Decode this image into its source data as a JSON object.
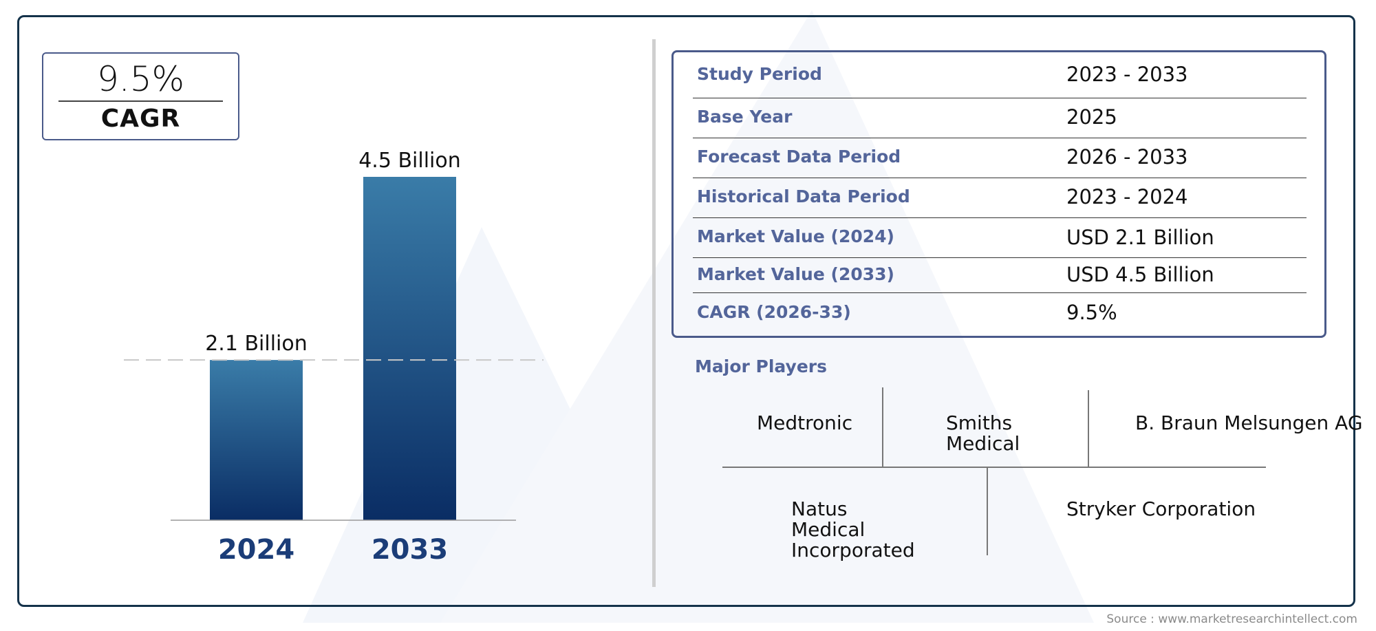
{
  "cagr": {
    "value": "9.5%",
    "label": "CAGR"
  },
  "chart_data": {
    "type": "bar",
    "categories": [
      "2024",
      "2033"
    ],
    "values": [
      2.1,
      4.5
    ],
    "data_labels": [
      "2.1 Billion",
      "4.5 Billion"
    ],
    "value_unit": "Billion",
    "reference_line": 2.1,
    "ylim": [
      0,
      4.5
    ],
    "grid": false,
    "colors": {
      "bar_top": "#3a7ca8",
      "bar_bottom": "#0a2d64",
      "tick_label": "#1b3d78",
      "ref_line": "#c8c8c8",
      "baseline": "#999999"
    }
  },
  "info_table": {
    "rows": [
      {
        "label": "Study Period",
        "value": "2023 - 2033"
      },
      {
        "label": "Base Year",
        "value": "2025"
      },
      {
        "label": "Forecast Data Period",
        "value": "2026 - 2033"
      },
      {
        "label": "Historical Data Period",
        "value": "2023 - 2024"
      },
      {
        "label": "Market Value (2024)",
        "value": "USD 2.1 Billion"
      },
      {
        "label": "Market Value (2033)",
        "value": "USD 4.5 Billion"
      },
      {
        "label": "CAGR (2026-33)",
        "value": "9.5%"
      }
    ]
  },
  "major_players": {
    "title": "Major Players",
    "players": [
      {
        "name": "Medtronic"
      },
      {
        "name": "Smiths Medical"
      },
      {
        "name": "B. Braun Melsungen AG"
      },
      {
        "name": "Natus Medical Incorporated"
      },
      {
        "name": "Stryker Corporation"
      }
    ]
  },
  "source": "Source : www.marketresearchintellect.com",
  "colors": {
    "accent": "#53659a",
    "border": "#14324a",
    "box_border": "#4a5a8a",
    "watermark": "#f3f6fb"
  }
}
